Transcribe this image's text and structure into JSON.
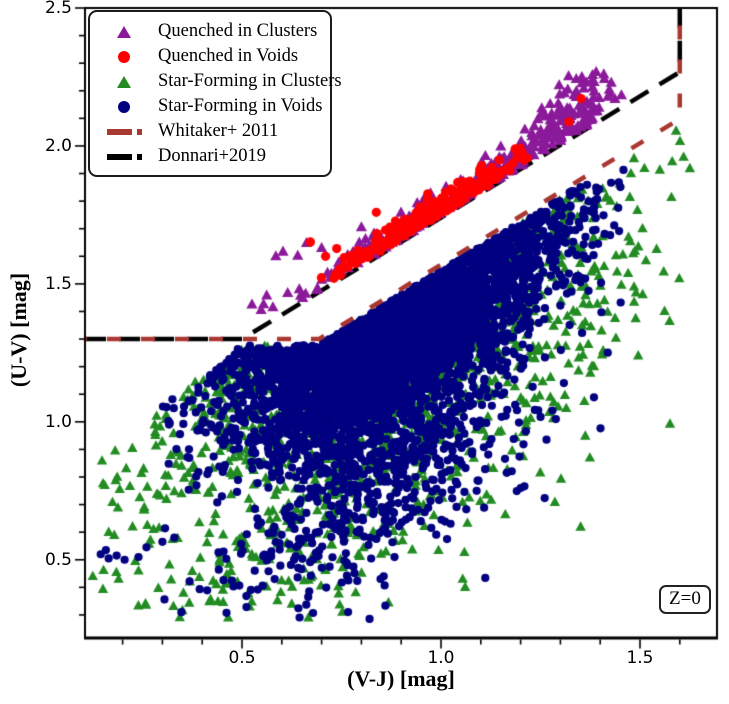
{
  "chart_data": {
    "type": "scatter",
    "title": "",
    "xlabel": "(V-J) [mag]",
    "ylabel": "(U-V) [mag]",
    "annotation": "Z=0",
    "xlim": [
      0.1055,
      1.6935
    ],
    "ylim": [
      0.2164,
      2.5
    ],
    "grid": false,
    "legend_position": "upper-left",
    "x_ticks": [
      {
        "v": 0.5,
        "label": "0.5"
      },
      {
        "v": 1.0,
        "label": "1.0"
      },
      {
        "v": 1.5,
        "label": "1.5"
      }
    ],
    "y_ticks": [
      {
        "v": 0.5,
        "label": "0.5"
      },
      {
        "v": 1.0,
        "label": "1.0"
      },
      {
        "v": 1.5,
        "label": "1.5"
      },
      {
        "v": 2.0,
        "label": "2.0"
      },
      {
        "v": 2.5,
        "label": "2.5"
      }
    ],
    "minor_tick_step": 0.1,
    "series": [
      {
        "name": "Quenched in Clusters",
        "marker": "triangle",
        "color": "#8B1A9B",
        "population": "quenched",
        "n": 380,
        "size": 5.6,
        "x_components": [
          {
            "w": 0.72,
            "mean": 1.03,
            "sd": 0.18
          },
          {
            "w": 0.28,
            "mean": 1.33,
            "sd": 0.055
          }
        ],
        "x_range": [
          0.5,
          1.47
        ],
        "spread_base": 0.042,
        "spread_slope": 0.3,
        "extras": [
          [
            0.525,
            1.425
          ],
          [
            0.548,
            1.405
          ],
          [
            0.562,
            1.458
          ],
          [
            0.585,
            1.6
          ],
          [
            0.603,
            1.617
          ],
          [
            0.64,
            1.602
          ],
          [
            0.662,
            1.648
          ],
          [
            0.8,
            1.705
          ],
          [
            0.7,
            1.63
          ]
        ]
      },
      {
        "name": "Quenched in Voids",
        "marker": "circle",
        "color": "#FF0000",
        "population": "quenched",
        "n": 265,
        "size": 4.6,
        "x_components": [
          {
            "w": 1.0,
            "mean": 0.97,
            "sd": 0.125
          }
        ],
        "x_range": [
          0.64,
          1.4
        ],
        "spread_base": 0.038,
        "spread_slope": 0.1,
        "extras": [
          [
            0.738,
            1.628
          ],
          [
            0.672,
            1.652
          ],
          [
            0.71,
            1.6
          ],
          [
            1.352,
            2.172
          ]
        ]
      },
      {
        "name": "Star-Forming in Clusters",
        "marker": "triangle",
        "color": "#228B22",
        "population": "star-forming",
        "n": 1500,
        "size": 5.2,
        "x_mean": 0.85,
        "x_sd": 0.32,
        "x_range": [
          0.13,
          1.64
        ],
        "depth_sd": 0.34,
        "top_margin": 0.025,
        "low_frac": 0.2,
        "low_extra": 0.26,
        "extras": [
          [
            0.155,
            0.77
          ],
          [
            0.125,
            0.44
          ],
          [
            0.19,
            0.43
          ],
          [
            0.225,
            0.62
          ],
          [
            0.165,
            0.6
          ],
          [
            0.24,
            0.46
          ]
        ]
      },
      {
        "name": "Star-Forming in Voids",
        "marker": "circle",
        "color": "#000080",
        "population": "star-forming",
        "n": 5200,
        "size": 4.1,
        "x_mean": 0.88,
        "x_sd": 0.2,
        "x_range": [
          0.3,
          1.48
        ],
        "depth_sd": 0.225,
        "top_margin": 0.022,
        "low_frac": 0.09,
        "low_extra": 0.22,
        "extras": [
          [
            0.145,
            0.52
          ],
          [
            0.165,
            0.505
          ],
          [
            0.185,
            0.515
          ],
          [
            0.158,
            0.535
          ],
          [
            0.205,
            0.5
          ],
          [
            0.24,
            0.51
          ],
          [
            0.26,
            0.545
          ],
          [
            0.3,
            0.565
          ],
          [
            0.33,
            0.58
          ]
        ]
      }
    ],
    "lines": [
      {
        "name": "Whitaker+ 2011",
        "color": "#A93732",
        "width": 4.5,
        "dash": [
          14,
          20
        ],
        "dash_offset": 12,
        "equation": "U-V = 0.88(V-J) + 0.69",
        "vertices": [
          [
            0.1055,
            1.3
          ],
          [
            0.6932,
            1.3
          ],
          [
            1.6,
            2.098
          ],
          [
            1.6,
            2.5
          ]
        ]
      },
      {
        "name": "Donnari+2019",
        "color": "#000000",
        "width": 4.5,
        "dash": [
          21,
          13
        ],
        "dash_offset": 0,
        "equation": "U-V = 0.88(V-J) + 0.86",
        "vertices": [
          [
            0.1055,
            1.3
          ],
          [
            0.5,
            1.3
          ],
          [
            1.6,
            2.268
          ],
          [
            1.6,
            2.5
          ]
        ]
      }
    ]
  }
}
